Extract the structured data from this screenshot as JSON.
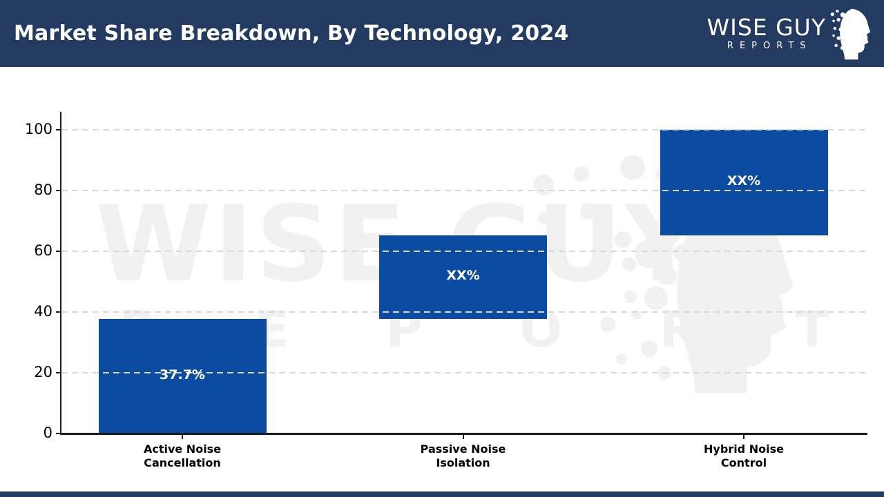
{
  "header": {
    "title": "Market Share Breakdown, By Technology, 2024",
    "logo": {
      "name": "WISE GUY",
      "subtitle": "REPORTS"
    }
  },
  "watermark": {
    "line1": "WISE GUY",
    "line2": "REPORTS"
  },
  "footer": {},
  "colors": {
    "header_navy": "#243b61",
    "bar_blue": "#0b4ba1",
    "gridline_gray": "#d9d9d9",
    "watermark_gray": "#f1f1f1",
    "axis_black": "#1a1a1a"
  },
  "chart_data": {
    "type": "bar",
    "variant": "floating-waterfall",
    "title": "Market Share Breakdown, By Technology, 2024",
    "categories": [
      "Active Noise Cancellation",
      "Passive Noise Isolation",
      "Hybrid Noise Control"
    ],
    "category_lines": [
      [
        "Active Noise",
        "Cancellation"
      ],
      [
        "Passive Noise",
        "Isolation"
      ],
      [
        "Hybrid Noise",
        "Control"
      ]
    ],
    "bars": [
      {
        "start": 0,
        "end": 37.7,
        "label": "37.7%"
      },
      {
        "start": 37.7,
        "end": 65.2,
        "label": "XX%"
      },
      {
        "start": 65.2,
        "end": 100,
        "label": "XX%"
      }
    ],
    "y_ticks": [
      0,
      20,
      40,
      60,
      80,
      100
    ],
    "ylim": [
      0,
      106
    ],
    "grid": "horizontal-dashed",
    "legend": "none",
    "xlabel": "",
    "ylabel": ""
  }
}
